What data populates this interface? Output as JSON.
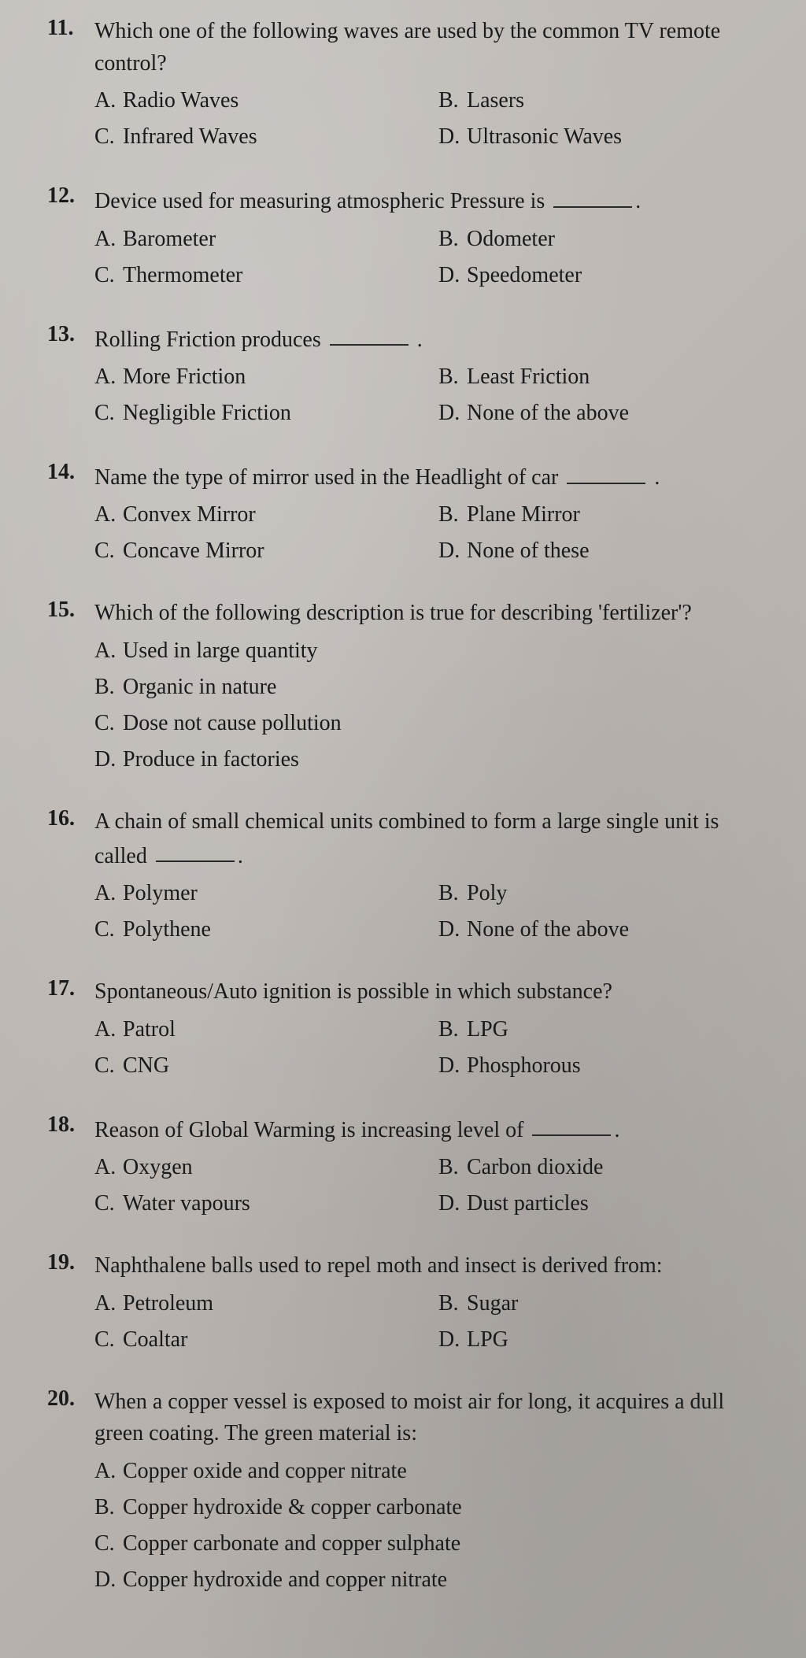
{
  "page": {
    "background_color": "#bdb8b4",
    "text_color": "#1a1a1a",
    "font_family": "Georgia, Times New Roman, serif",
    "base_fontsize": 28
  },
  "questions": [
    {
      "number": "11.",
      "text": "Which one of the following waves are used by the common TV remote control?",
      "blank": false,
      "two_col": true,
      "options": [
        {
          "l": "A.",
          "t": "Radio Waves"
        },
        {
          "l": "B.",
          "t": "Lasers"
        },
        {
          "l": "C.",
          "t": "Infrared Waves"
        },
        {
          "l": "D.",
          "t": "Ultrasonic Waves"
        }
      ]
    },
    {
      "number": "12.",
      "text": "Device used for measuring atmospheric Pressure is ",
      "blank": true,
      "blank_after": ".",
      "two_col": true,
      "options": [
        {
          "l": "A.",
          "t": "Barometer"
        },
        {
          "l": "B.",
          "t": "Odometer"
        },
        {
          "l": "C.",
          "t": "Thermometer"
        },
        {
          "l": "D.",
          "t": "Speedometer"
        }
      ]
    },
    {
      "number": "13.",
      "text": "Rolling Friction produces ",
      "blank": true,
      "blank_after": " .",
      "two_col": true,
      "options": [
        {
          "l": "A.",
          "t": "More Friction"
        },
        {
          "l": "B.",
          "t": "Least Friction"
        },
        {
          "l": "C.",
          "t": "Negligible Friction"
        },
        {
          "l": "D.",
          "t": "None of the above"
        }
      ]
    },
    {
      "number": "14.",
      "text": "Name the type of mirror used in the Headlight of car ",
      "blank": true,
      "blank_after": " .",
      "two_col": true,
      "options": [
        {
          "l": "A.",
          "t": "Convex Mirror"
        },
        {
          "l": "B.",
          "t": "Plane Mirror"
        },
        {
          "l": "C.",
          "t": "Concave Mirror"
        },
        {
          "l": "D.",
          "t": "None of these"
        }
      ]
    },
    {
      "number": "15.",
      "text": "Which of the following description is true for describing 'fertilizer'?",
      "blank": false,
      "two_col": false,
      "options": [
        {
          "l": "A.",
          "t": "Used in large quantity"
        },
        {
          "l": "B.",
          "t": "Organic in nature"
        },
        {
          "l": "C.",
          "t": "Dose not cause pollution"
        },
        {
          "l": "D.",
          "t": "Produce in factories"
        }
      ]
    },
    {
      "number": "16.",
      "text": "A chain of small chemical units combined to form a large single unit is called ",
      "blank": true,
      "blank_after": ".",
      "two_col": true,
      "options": [
        {
          "l": "A.",
          "t": "Polymer"
        },
        {
          "l": "B.",
          "t": "Poly"
        },
        {
          "l": "C.",
          "t": "Polythene"
        },
        {
          "l": "D.",
          "t": "None of the above"
        }
      ]
    },
    {
      "number": "17.",
      "text": "Spontaneous/Auto ignition is possible in which substance?",
      "blank": false,
      "two_col": true,
      "options": [
        {
          "l": "A.",
          "t": "Patrol"
        },
        {
          "l": "B.",
          "t": "LPG"
        },
        {
          "l": "C.",
          "t": "CNG"
        },
        {
          "l": "D.",
          "t": "Phosphorous"
        }
      ]
    },
    {
      "number": "18.",
      "text": "Reason of Global Warming is increasing level of ",
      "blank": true,
      "blank_after": ".",
      "two_col": true,
      "options": [
        {
          "l": "A.",
          "t": "Oxygen"
        },
        {
          "l": "B.",
          "t": "Carbon dioxide"
        },
        {
          "l": "C.",
          "t": "Water vapours"
        },
        {
          "l": "D.",
          "t": "Dust particles"
        }
      ]
    },
    {
      "number": "19.",
      "text": "Naphthalene balls used to repel moth and insect is derived from:",
      "blank": false,
      "two_col": true,
      "options": [
        {
          "l": "A.",
          "t": "Petroleum"
        },
        {
          "l": "B.",
          "t": "Sugar"
        },
        {
          "l": "C.",
          "t": "Coaltar"
        },
        {
          "l": "D.",
          "t": "LPG"
        }
      ]
    },
    {
      "number": "20.",
      "text": "When a copper vessel is exposed to moist air for long, it acquires a dull green coating. The green material is:",
      "blank": false,
      "two_col": false,
      "options": [
        {
          "l": "A.",
          "t": "Copper oxide and copper nitrate"
        },
        {
          "l": "B.",
          "t": "Copper hydroxide & copper carbonate"
        },
        {
          "l": "C.",
          "t": "Copper carbonate and copper sulphate"
        },
        {
          "l": "D.",
          "t": "Copper hydroxide and copper nitrate"
        }
      ]
    }
  ]
}
